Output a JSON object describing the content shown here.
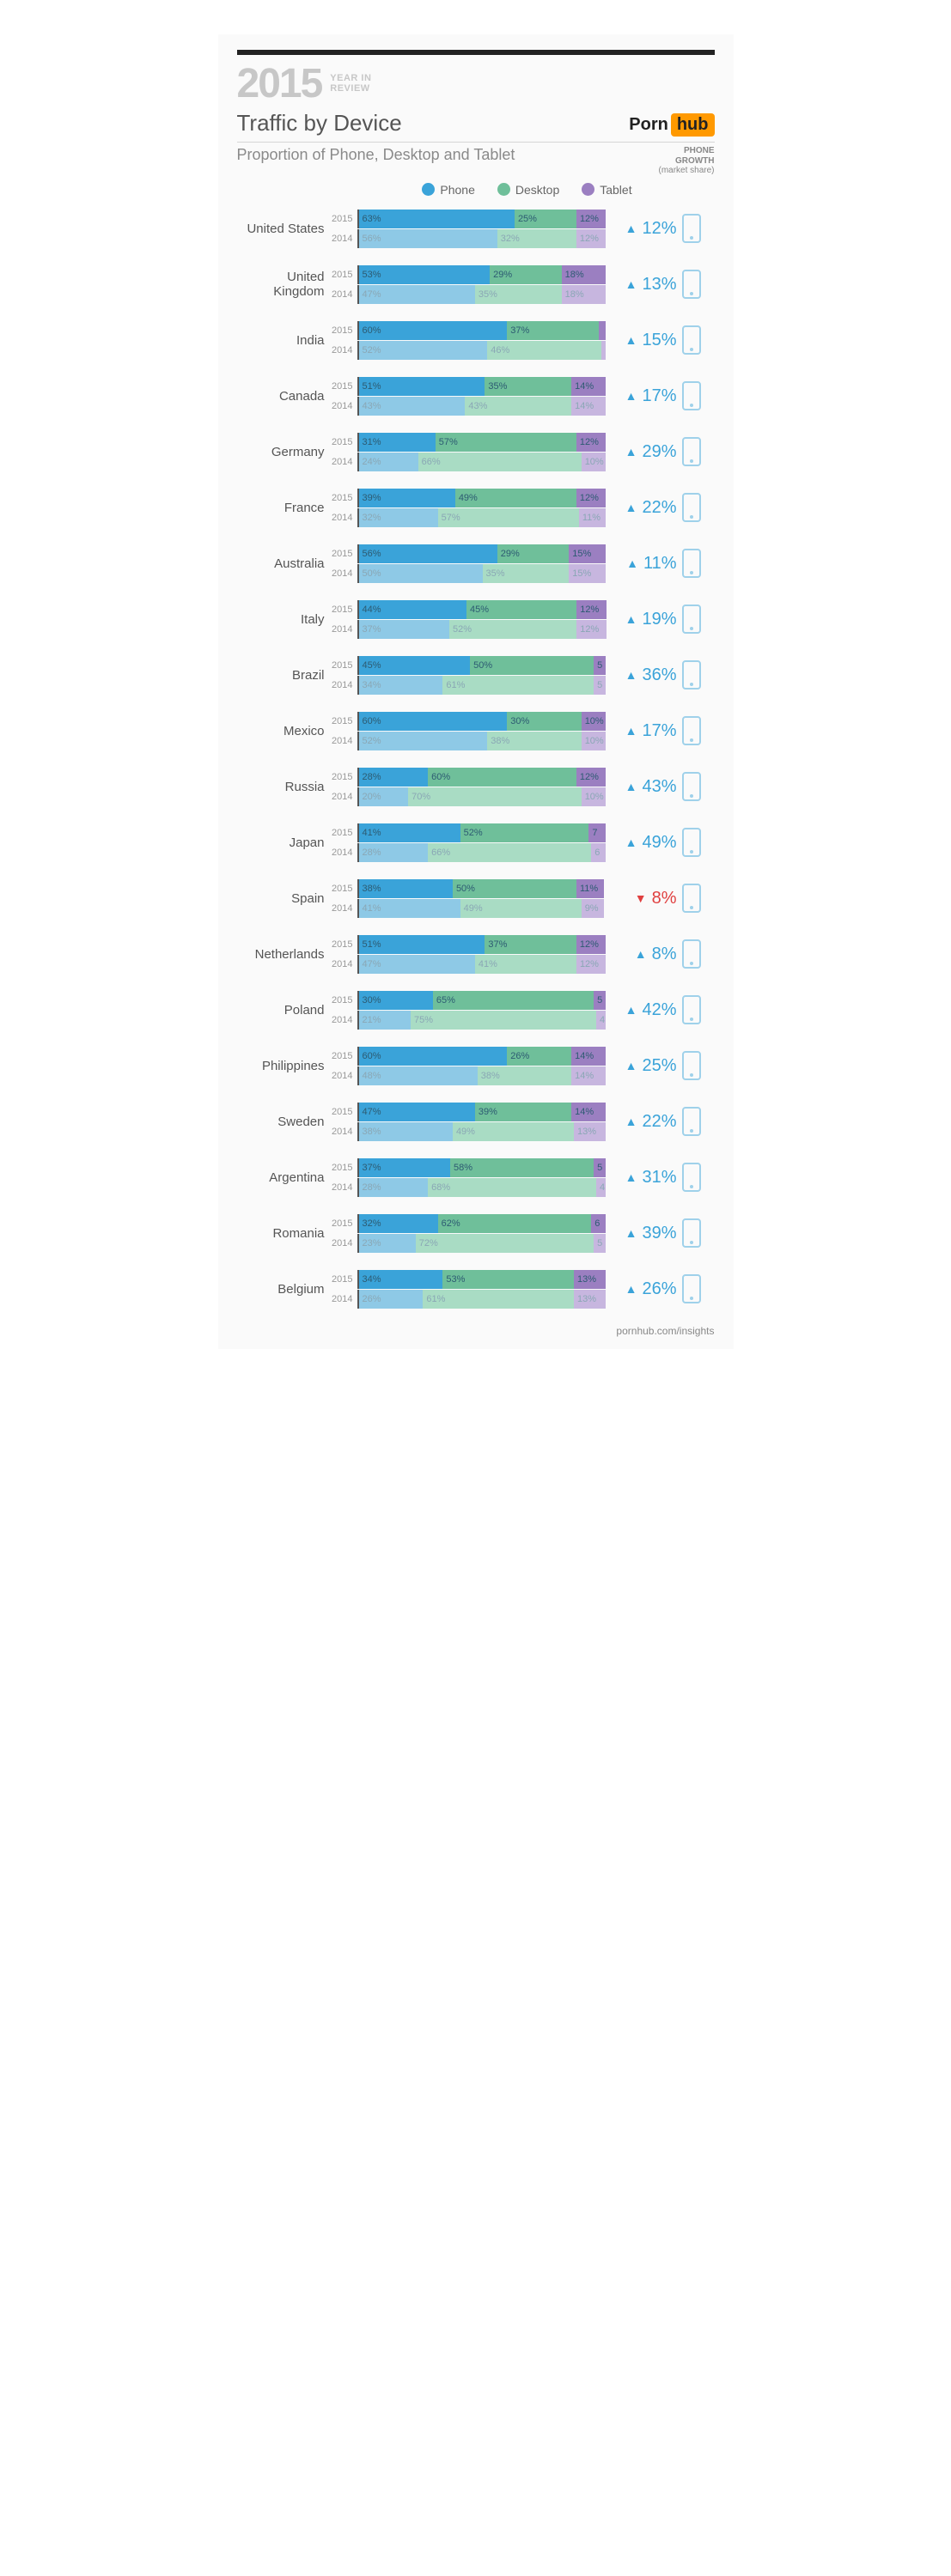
{
  "header": {
    "year": "2015",
    "yir_line1": "YEAR IN",
    "yir_line2": "REVIEW",
    "title": "Traffic by Device",
    "subtitle": "Proportion of Phone, Desktop and Tablet",
    "logo_part1": "Porn",
    "logo_part2": "hub",
    "growth_hdr_l1": "PHONE",
    "growth_hdr_l2": "GROWTH",
    "growth_hdr_l3": "(market share)"
  },
  "colors": {
    "phone": "#3aa3d9",
    "desktop": "#6fbf9a",
    "tablet": "#9b7fc1",
    "phone_dim": "#8ec9e6",
    "desktop_dim": "#a9dcc4",
    "tablet_dim": "#c7b6df",
    "seg_text": "#2d5b72",
    "seg_text_dim": "#8aa7b5",
    "growth_up": "#3aa3d9",
    "growth_down": "#e04040",
    "phone_icon": "#9fd1ea"
  },
  "legend": {
    "phone": "Phone",
    "desktop": "Desktop",
    "tablet": "Tablet"
  },
  "years": {
    "current": "2015",
    "prev": "2014"
  },
  "countries": [
    {
      "name": "United States",
      "y2015": {
        "phone": 63,
        "desktop": 25,
        "tablet": 12
      },
      "y2014": {
        "phone": 56,
        "desktop": 32,
        "tablet": 12
      },
      "growth": 12,
      "dir": "up"
    },
    {
      "name": "United Kingdom",
      "y2015": {
        "phone": 53,
        "desktop": 29,
        "tablet": 18
      },
      "y2014": {
        "phone": 47,
        "desktop": 35,
        "tablet": 18
      },
      "growth": 13,
      "dir": "up"
    },
    {
      "name": "India",
      "y2015": {
        "phone": 60,
        "desktop": 37,
        "tablet": 3
      },
      "y2014": {
        "phone": 52,
        "desktop": 46,
        "tablet": 2
      },
      "growth": 15,
      "dir": "up",
      "hide_tablet": true
    },
    {
      "name": "Canada",
      "y2015": {
        "phone": 51,
        "desktop": 35,
        "tablet": 14
      },
      "y2014": {
        "phone": 43,
        "desktop": 43,
        "tablet": 14
      },
      "growth": 17,
      "dir": "up"
    },
    {
      "name": "Germany",
      "y2015": {
        "phone": 31,
        "desktop": 57,
        "tablet": 12
      },
      "y2014": {
        "phone": 24,
        "desktop": 66,
        "tablet": 10
      },
      "growth": 29,
      "dir": "up"
    },
    {
      "name": "France",
      "y2015": {
        "phone": 39,
        "desktop": 49,
        "tablet": 12
      },
      "y2014": {
        "phone": 32,
        "desktop": 57,
        "tablet": 11
      },
      "growth": 22,
      "dir": "up"
    },
    {
      "name": "Australia",
      "y2015": {
        "phone": 56,
        "desktop": 29,
        "tablet": 15
      },
      "y2014": {
        "phone": 50,
        "desktop": 35,
        "tablet": 15
      },
      "growth": 11,
      "dir": "up"
    },
    {
      "name": "Italy",
      "y2015": {
        "phone": 44,
        "desktop": 45,
        "tablet": 12
      },
      "y2014": {
        "phone": 37,
        "desktop": 52,
        "tablet": 12
      },
      "growth": 19,
      "dir": "up"
    },
    {
      "name": "Brazil",
      "y2015": {
        "phone": 45,
        "desktop": 50,
        "tablet": 5
      },
      "y2014": {
        "phone": 34,
        "desktop": 61,
        "tablet": 5
      },
      "growth": 36,
      "dir": "up",
      "tablet_nopct": true
    },
    {
      "name": "Mexico",
      "y2015": {
        "phone": 60,
        "desktop": 30,
        "tablet": 10
      },
      "y2014": {
        "phone": 52,
        "desktop": 38,
        "tablet": 10
      },
      "growth": 17,
      "dir": "up"
    },
    {
      "name": "Russia",
      "y2015": {
        "phone": 28,
        "desktop": 60,
        "tablet": 12
      },
      "y2014": {
        "phone": 20,
        "desktop": 70,
        "tablet": 10
      },
      "growth": 43,
      "dir": "up"
    },
    {
      "name": "Japan",
      "y2015": {
        "phone": 41,
        "desktop": 52,
        "tablet": 7
      },
      "y2014": {
        "phone": 28,
        "desktop": 66,
        "tablet": 6
      },
      "growth": 49,
      "dir": "up",
      "tablet_nopct": true
    },
    {
      "name": "Spain",
      "y2015": {
        "phone": 38,
        "desktop": 50,
        "tablet": 11
      },
      "y2014": {
        "phone": 41,
        "desktop": 49,
        "tablet": 9
      },
      "growth": 8,
      "dir": "down"
    },
    {
      "name": "Netherlands",
      "y2015": {
        "phone": 51,
        "desktop": 37,
        "tablet": 12
      },
      "y2014": {
        "phone": 47,
        "desktop": 41,
        "tablet": 12
      },
      "growth": 8,
      "dir": "up"
    },
    {
      "name": "Poland",
      "y2015": {
        "phone": 30,
        "desktop": 65,
        "tablet": 5
      },
      "y2014": {
        "phone": 21,
        "desktop": 75,
        "tablet": 4
      },
      "growth": 42,
      "dir": "up",
      "tablet_nopct": true
    },
    {
      "name": "Philippines",
      "y2015": {
        "phone": 60,
        "desktop": 26,
        "tablet": 14
      },
      "y2014": {
        "phone": 48,
        "desktop": 38,
        "tablet": 14
      },
      "growth": 25,
      "dir": "up"
    },
    {
      "name": "Sweden",
      "y2015": {
        "phone": 47,
        "desktop": 39,
        "tablet": 14
      },
      "y2014": {
        "phone": 38,
        "desktop": 49,
        "tablet": 13
      },
      "growth": 22,
      "dir": "up"
    },
    {
      "name": "Argentina",
      "y2015": {
        "phone": 37,
        "desktop": 58,
        "tablet": 5
      },
      "y2014": {
        "phone": 28,
        "desktop": 68,
        "tablet": 4
      },
      "growth": 31,
      "dir": "up",
      "tablet_nopct": true
    },
    {
      "name": "Romania",
      "y2015": {
        "phone": 32,
        "desktop": 62,
        "tablet": 6
      },
      "y2014": {
        "phone": 23,
        "desktop": 72,
        "tablet": 5
      },
      "growth": 39,
      "dir": "up",
      "tablet_nopct": true
    },
    {
      "name": "Belgium",
      "y2015": {
        "phone": 34,
        "desktop": 53,
        "tablet": 13
      },
      "y2014": {
        "phone": 26,
        "desktop": 61,
        "tablet": 13
      },
      "growth": 26,
      "dir": "up"
    }
  ],
  "footer": "pornhub.com/insights"
}
